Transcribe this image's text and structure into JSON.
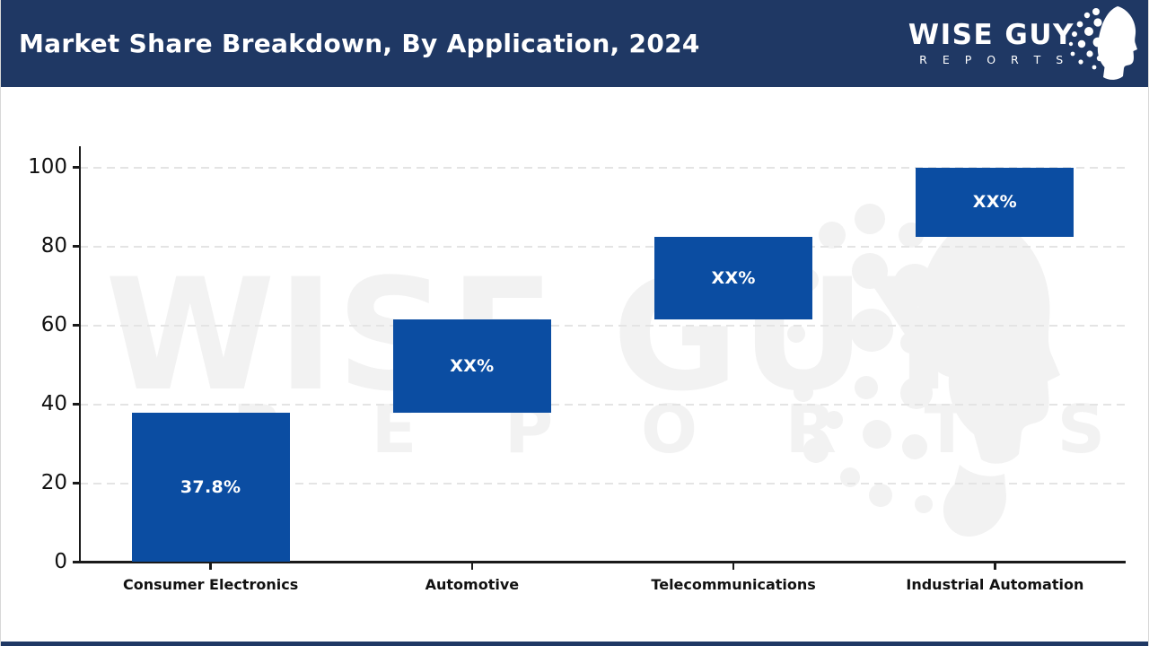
{
  "header": {
    "title": "Market Share Breakdown, By Application, 2024",
    "logo": {
      "line1": "WISE GUY",
      "line2": "R E P O R T S"
    }
  },
  "watermark": {
    "line1": "WISE GUY",
    "line2": "R E P O R T S"
  },
  "colors": {
    "header_bg": "#1f3864",
    "bar": "#0b4da2",
    "grid": "#e4e4e4",
    "axis": "#1a1a1a",
    "watermark": "#f2f2f2",
    "bar_label": "#ffffff",
    "title_text": "#ffffff"
  },
  "chart_data": {
    "type": "bar",
    "subtype": "waterfall",
    "title": "Market Share Breakdown, By Application, 2024",
    "xlabel": "",
    "ylabel": "",
    "grid": true,
    "legend": false,
    "ylim": [
      0,
      105
    ],
    "yticks": [
      0,
      20,
      40,
      60,
      80,
      100
    ],
    "categories": [
      "Consumer Electronics",
      "Automotive",
      "Telecommunications",
      "Industrial Automation"
    ],
    "bars": [
      {
        "category": "Consumer Electronics",
        "start": 0,
        "end": 37.8,
        "label": "37.8%"
      },
      {
        "category": "Automotive",
        "start": 37.8,
        "end": 61.5,
        "label": "XX%"
      },
      {
        "category": "Telecommunications",
        "start": 61.5,
        "end": 82.5,
        "label": "XX%"
      },
      {
        "category": "Industrial Automation",
        "start": 82.5,
        "end": 100,
        "label": "XX%"
      }
    ]
  }
}
